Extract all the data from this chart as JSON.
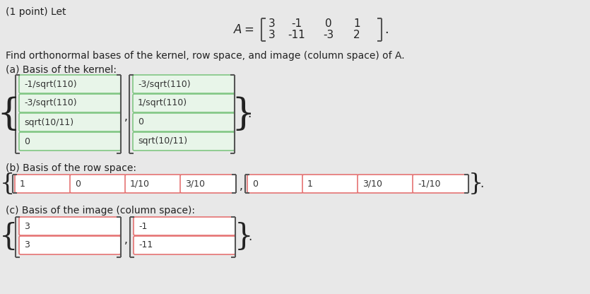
{
  "bg_color": "#e8e8e8",
  "title_text": "(1 point) Let",
  "problem_text": "Find orthonormal bases of the kernel, row space, and image (column space) of A.",
  "part_a_label": "(a) Basis of the kernel:",
  "part_b_label": "(b) Basis of the row space:",
  "part_c_label": "(c) Basis of the image (column space):",
  "matrix_row1": [
    "3",
    "-1",
    "0",
    "1"
  ],
  "matrix_row2": [
    "3",
    "-11",
    "-3",
    "2"
  ],
  "kernel_vec1": [
    "-1/sqrt(110)",
    "-3/sqrt(110)",
    "sqrt(10/11)",
    "0"
  ],
  "kernel_vec2": [
    "-3/sqrt(110)",
    "1/sqrt(110)",
    "0",
    "sqrt(10/11)"
  ],
  "kernel_box_color": "#e8f5e9",
  "kernel_border_color": "#81c784",
  "row_vec1": [
    "1",
    "0",
    "1/10",
    "3/10"
  ],
  "row_vec2": [
    "0",
    "1",
    "3/10",
    "-1/10"
  ],
  "row_box_color": "#ffffff",
  "row_border_color": "#e57373",
  "col_vec1": [
    "3",
    "3"
  ],
  "col_vec2": [
    "-1",
    "-11"
  ],
  "col_box_color": "#ffffff",
  "col_border_color": "#e57373",
  "text_color": "#222222",
  "bracket_color": "#555555"
}
